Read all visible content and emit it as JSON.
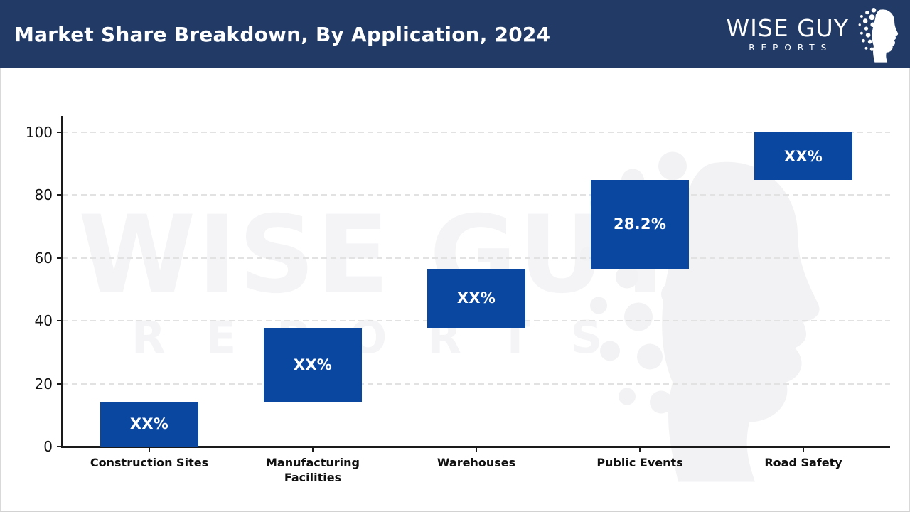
{
  "header": {
    "title": "Market Share Breakdown, By Application, 2024",
    "logo": {
      "line1": "WISE GUY",
      "line2": "REPORTS"
    }
  },
  "watermark": {
    "line1": "WISE GUY",
    "line2": "REPORTS"
  },
  "colors": {
    "header_bg": "#213a66",
    "bar": "#0a47a0",
    "grid": "#e2e2e2",
    "axis": "#1a1a1a",
    "watermark": "#f4f4f6",
    "label_text": "#ffffff"
  },
  "chart_data": {
    "type": "bar",
    "subtype": "waterfall",
    "title": "Market Share Breakdown, By Application, 2024",
    "categories": [
      "Construction Sites",
      "Manufacturing Facilities",
      "Warehouses",
      "Public Events",
      "Road Safety"
    ],
    "segments": [
      {
        "category": "Construction Sites",
        "start": 0,
        "end": 14.3,
        "value": 14.3,
        "label": "XX%"
      },
      {
        "category": "Manufacturing Facilities",
        "start": 14.3,
        "end": 37.8,
        "value": 23.5,
        "label": "XX%"
      },
      {
        "category": "Warehouses",
        "start": 37.8,
        "end": 56.6,
        "value": 18.8,
        "label": "XX%"
      },
      {
        "category": "Public Events",
        "start": 56.6,
        "end": 84.8,
        "value": 28.2,
        "label": "28.2%"
      },
      {
        "category": "Road Safety",
        "start": 84.8,
        "end": 100,
        "value": 15.2,
        "label": "XX%"
      }
    ],
    "ylim": [
      0,
      100
    ],
    "yticks": [
      0,
      20,
      40,
      60,
      80,
      100
    ],
    "grid": "horizontal dashed",
    "bar_color": "#0a47a0",
    "legend": null
  }
}
